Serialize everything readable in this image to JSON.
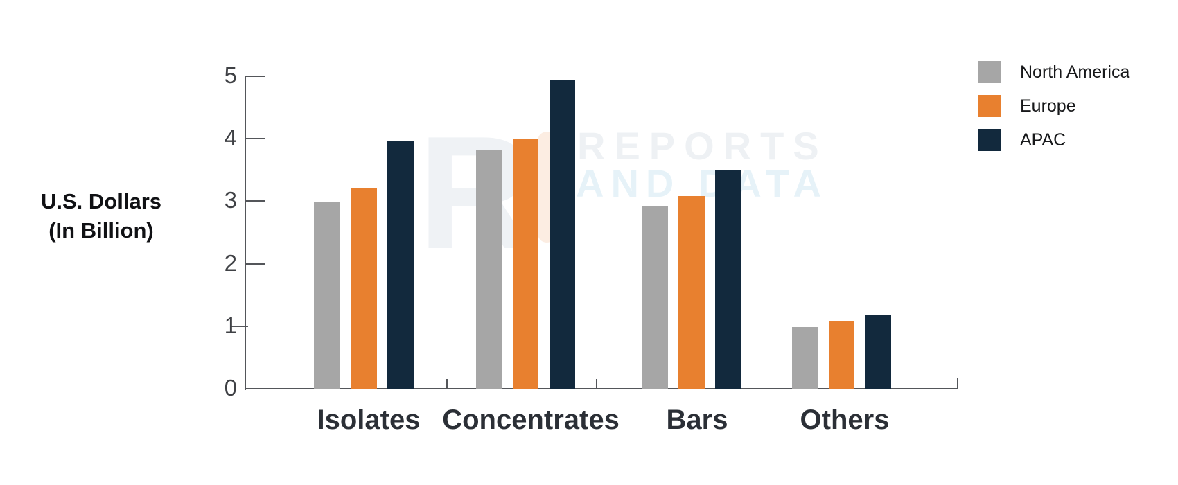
{
  "chart_data": {
    "type": "bar",
    "title": "",
    "ylabel": "U.S. Dollars (In Billion)",
    "ylabel_line1": "U.S. Dollars",
    "ylabel_line2": "(In Billion)",
    "xlabel": "",
    "categories": [
      "Isolates",
      "Concentrates",
      "Bars",
      "Others"
    ],
    "series": [
      {
        "name": "North America",
        "color": "#a6a6a6",
        "values": [
          2.98,
          3.83,
          2.93,
          0.99
        ]
      },
      {
        "name": "Europe",
        "color": "#e8802f",
        "values": [
          3.2,
          3.99,
          3.08,
          1.08
        ]
      },
      {
        "name": "APAC",
        "color": "#12293d",
        "values": [
          3.96,
          4.95,
          3.49,
          1.17
        ]
      }
    ],
    "y_ticks": [
      0,
      1,
      2,
      3,
      4,
      5
    ],
    "ylim": [
      0,
      5
    ],
    "grid": false,
    "legend_position": "top-right"
  },
  "watermark": {
    "logo_letter": "R",
    "line1": "REPORTS",
    "line2": "AND DATA"
  }
}
